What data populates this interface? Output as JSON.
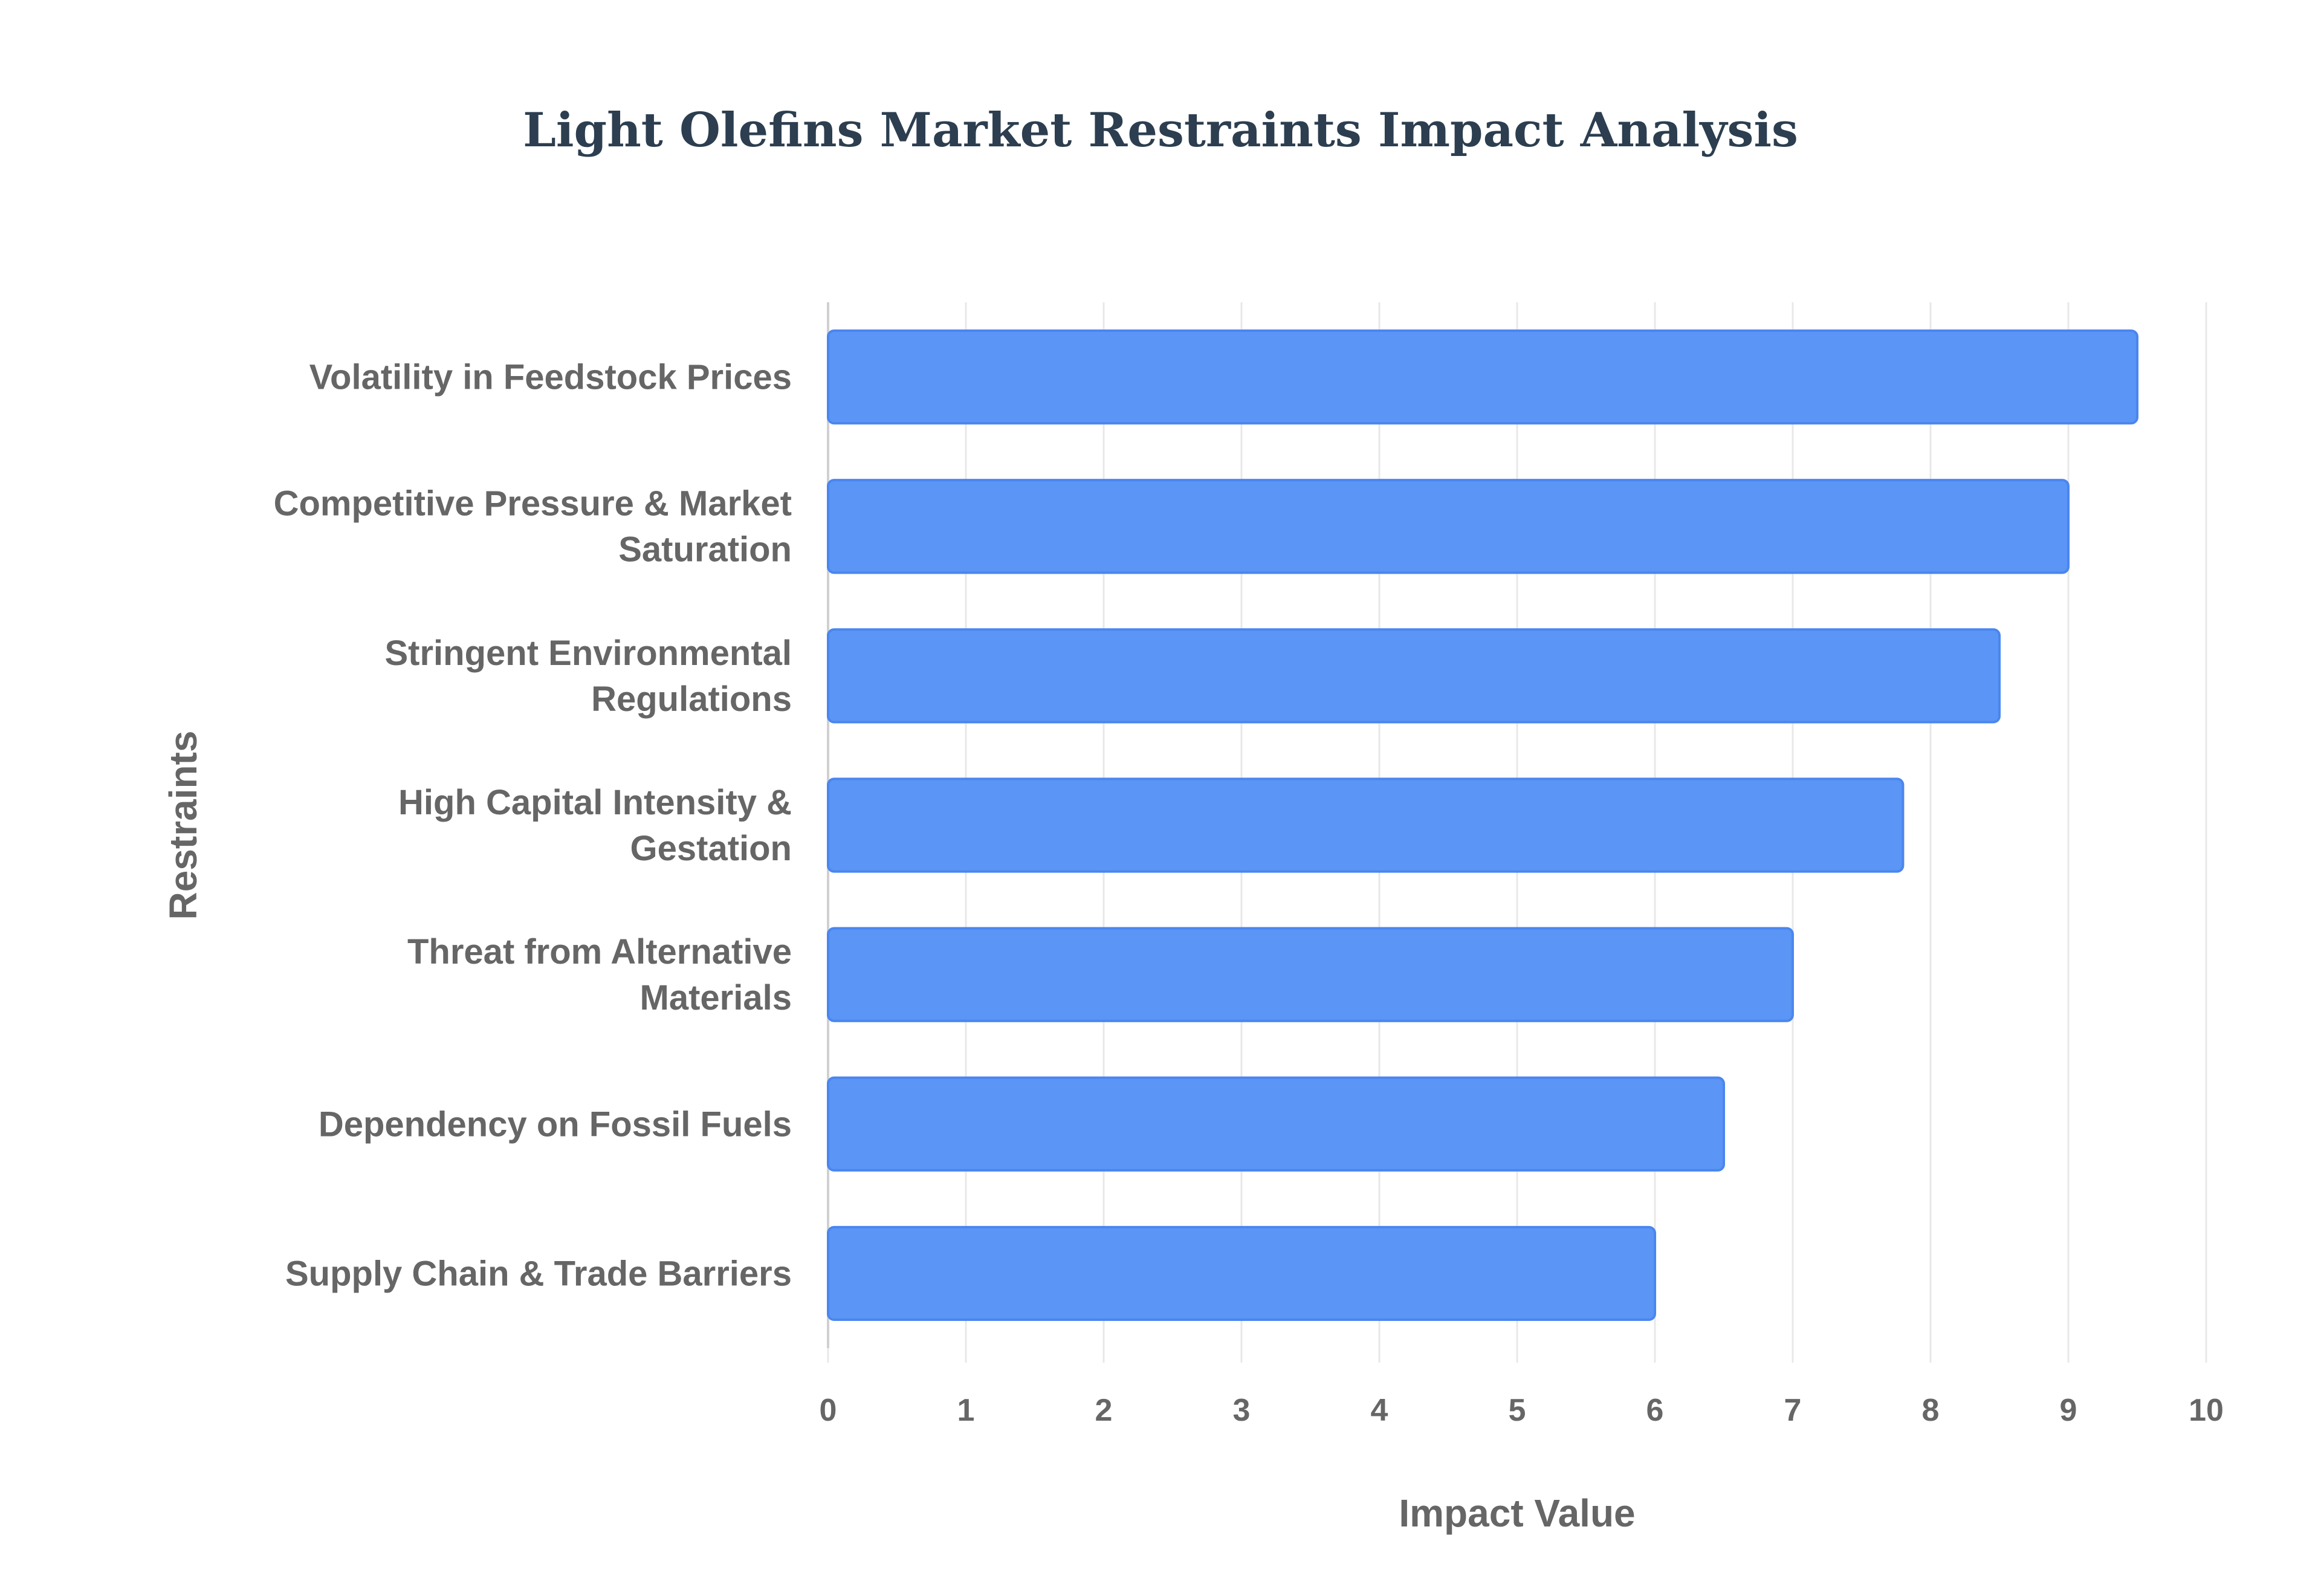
{
  "chart_data": {
    "type": "bar",
    "orientation": "horizontal",
    "title": "Light Olefins Market Restraints Impact Analysis",
    "xlabel": "Impact Value",
    "ylabel": "Restraints",
    "xlim": [
      0,
      10
    ],
    "xticks": [
      "0",
      "1",
      "2",
      "3",
      "4",
      "5",
      "6",
      "7",
      "8",
      "9",
      "10"
    ],
    "grid": true,
    "categories": [
      [
        "Volatility in Feedstock Prices"
      ],
      [
        "Competitive Pressure & Market",
        "Saturation"
      ],
      [
        "Stringent Environmental",
        "Regulations"
      ],
      [
        "High Capital Intensity &",
        "Gestation"
      ],
      [
        "Threat from Alternative",
        "Materials"
      ],
      [
        "Dependency on Fossil Fuels"
      ],
      [
        "Supply Chain & Trade Barriers"
      ]
    ],
    "values": [
      9.5,
      9.0,
      8.5,
      7.8,
      7.0,
      6.5,
      6.0
    ],
    "colors": {
      "bar": "#5b95f5",
      "bar_border": "#4a86ef",
      "grid": "#e8e8e8",
      "text": "#666666",
      "title": "#2c3e50"
    }
  }
}
